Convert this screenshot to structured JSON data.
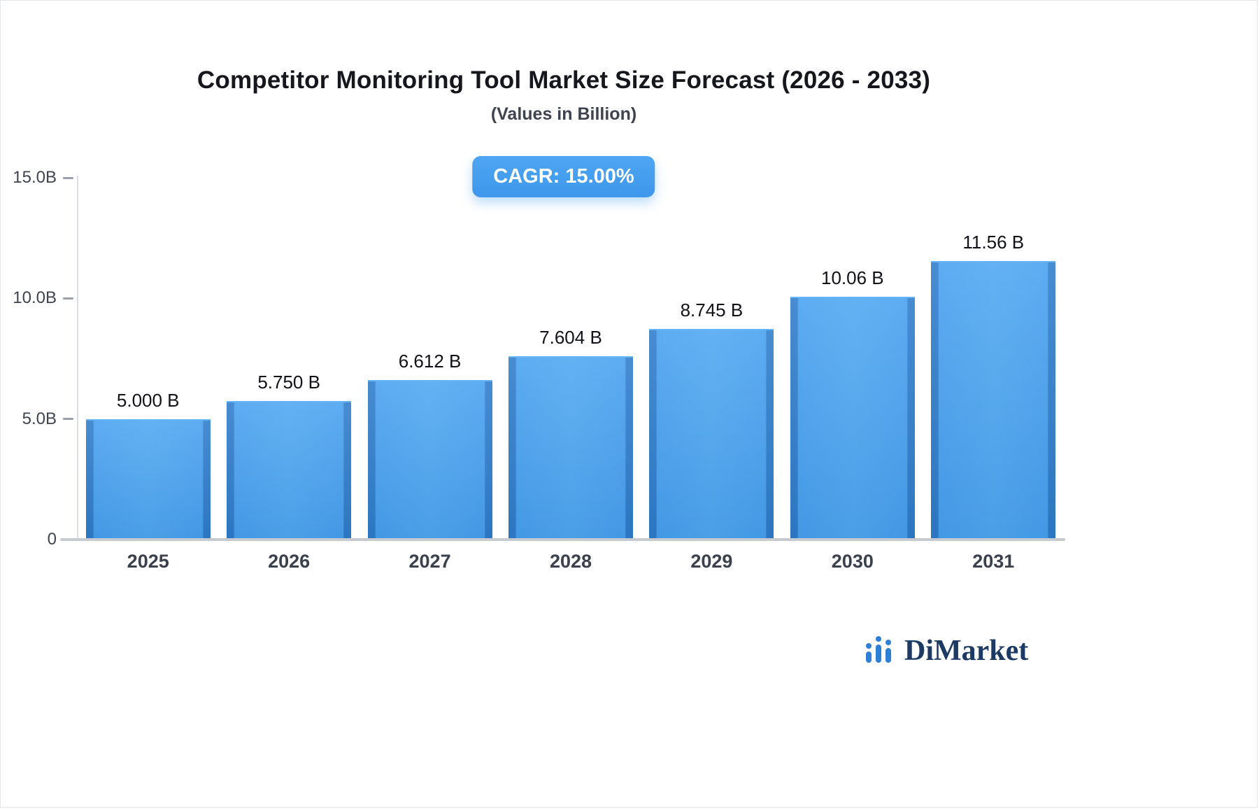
{
  "page": {
    "title": "Competitor Monitoring Tool Market Size Forecast (2026 - 2033)",
    "subtitle": "(Values in Billion)",
    "badge": "CAGR: 15.00%"
  },
  "chart_data": {
    "type": "bar",
    "title": "Competitor Monitoring Tool Market Size Forecast (2026 - 2033)",
    "subtitle": "(Values in Billion)",
    "cagr": "15.00%",
    "categories": [
      "2025",
      "2026",
      "2027",
      "2028",
      "2029",
      "2030",
      "2031"
    ],
    "values": [
      5.0,
      5.75,
      6.612,
      7.604,
      8.745,
      10.06,
      11.56
    ],
    "value_labels": [
      "5.000 B",
      "5.750 B",
      "6.612 B",
      "7.604 B",
      "8.745 B",
      "10.06 B",
      "11.56 B"
    ],
    "unit": "Billion",
    "xlabel": "",
    "ylabel": "",
    "ylim": [
      0,
      15
    ],
    "y_ticks": [
      "15.0B",
      "10.0B",
      "5.0B",
      "0"
    ],
    "grid": false,
    "legend": false,
    "bar_color": "#47A0F0",
    "bar_edge_color": "#2E7CCB"
  },
  "branding": {
    "logo_text": "DiMarket",
    "logo_icon": "bar-chart-icon",
    "logo_icon_color": "#2E7FD6",
    "logo_text_color": "#1C3A63"
  }
}
